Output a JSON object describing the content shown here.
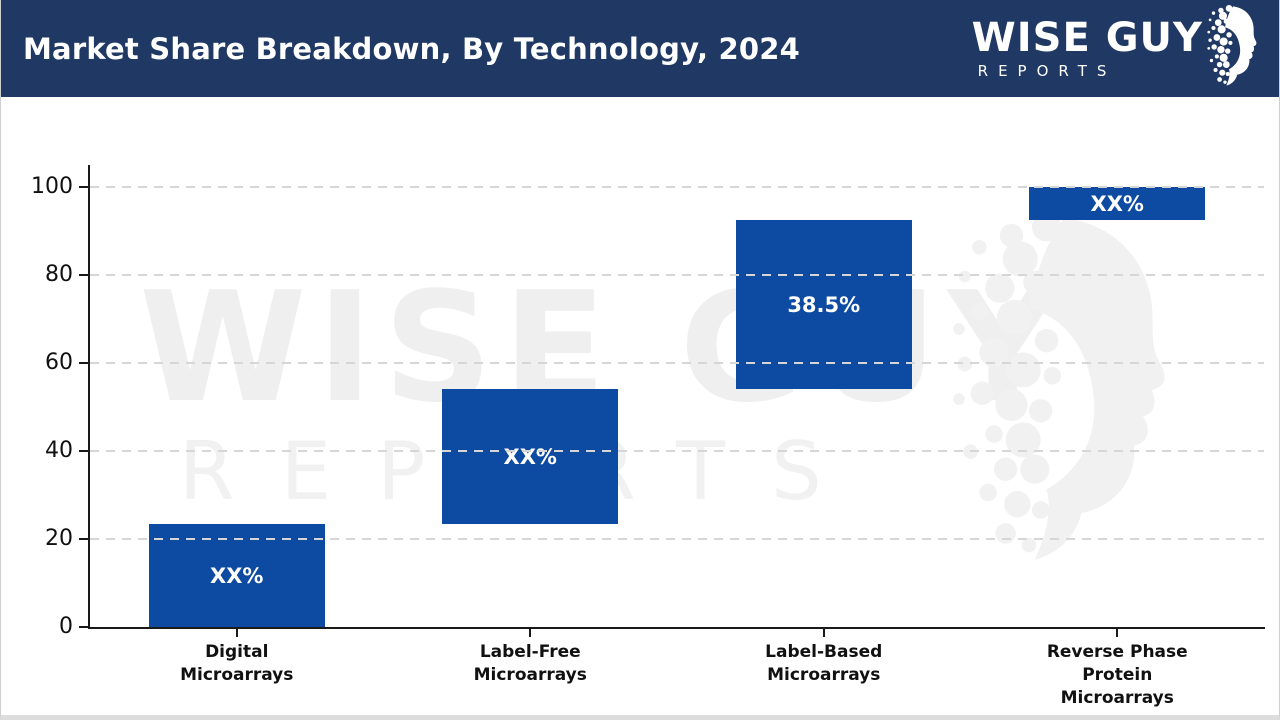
{
  "header": {
    "title": "Market Share Breakdown, By Technology, 2024",
    "bg_color": "#1f3864",
    "logo": {
      "name": "WISE GUY",
      "sub": "REPORTS",
      "head_icon": "dotted-face-profile"
    }
  },
  "watermark": {
    "line1": "WISE GUY",
    "line2": "REPORTS",
    "head_icon": "dotted-face-profile"
  },
  "chart_data": {
    "type": "bar",
    "subtype": "floating-waterfall",
    "title": "Market Share Breakdown, By Technology, 2024",
    "categories": [
      "Digital\nMicroarrays",
      "Label-Free\nMicroarrays",
      "Label-Based\nMicroarrays",
      "Reverse Phase\nProtein\nMicroarrays"
    ],
    "segments": [
      {
        "category": "Digital Microarrays",
        "start": 0,
        "end": 23.3,
        "value": 23.3,
        "label": "XX%"
      },
      {
        "category": "Label-Free Microarrays",
        "start": 23.3,
        "end": 54.0,
        "value": 30.7,
        "label": "XX%"
      },
      {
        "category": "Label-Based Microarrays",
        "start": 54.0,
        "end": 92.5,
        "value": 38.5,
        "label": "38.5%"
      },
      {
        "category": "Reverse Phase Protein Microarrays",
        "start": 92.5,
        "end": 100,
        "value": 7.5,
        "label": "XX%"
      }
    ],
    "ylim": [
      0,
      100
    ],
    "yticks": [
      0,
      20,
      40,
      60,
      80,
      100
    ],
    "xlabel": "",
    "ylabel": "",
    "grid": "horizontal-dashed-drawn-over-bars",
    "bar_color": "#0d4aa1",
    "bar_label_color": "#ffffff",
    "axis_color": "#1a1a1a",
    "grid_color": "#d6d6d6",
    "tick_label_color": "#111111"
  }
}
